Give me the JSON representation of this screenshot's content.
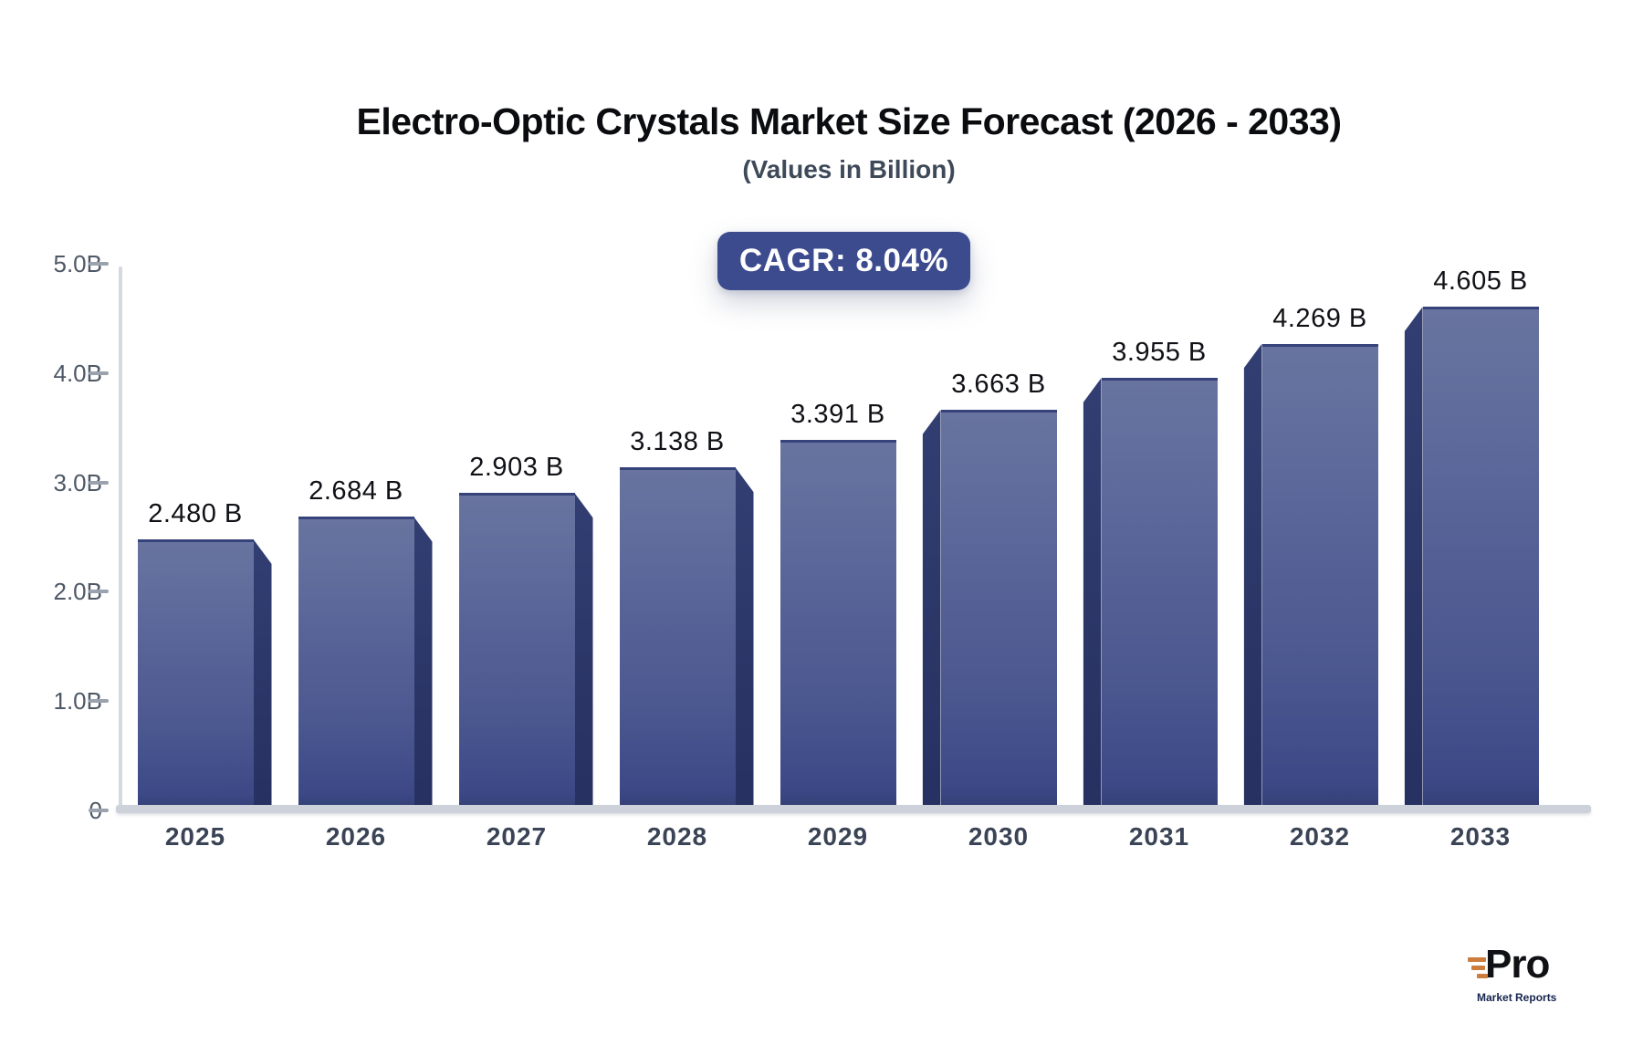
{
  "header": {
    "title": "Electro-Optic Crystals Market Size Forecast (2026 - 2033)",
    "subtitle": "(Values in Billion)",
    "cagr_badge": "CAGR: 8.04%"
  },
  "chart_data": {
    "type": "bar",
    "title": "Electro-Optic Crystals Market Size Forecast (2026 - 2033)",
    "subtitle": "(Values in Billion)",
    "cagr": "8.04%",
    "categories": [
      "2025",
      "2026",
      "2027",
      "2028",
      "2029",
      "2030",
      "2031",
      "2032",
      "2033"
    ],
    "values": [
      2.48,
      2.684,
      2.903,
      3.138,
      3.391,
      3.663,
      3.955,
      4.269,
      4.605
    ],
    "value_labels": [
      "2.480 B",
      "2.684 B",
      "2.903 B",
      "3.138 B",
      "3.391 B",
      "3.663 B",
      "3.955 B",
      "4.269 B",
      "4.605 B"
    ],
    "unit": "Billion",
    "xlabel": "",
    "ylabel": "",
    "ylim": [
      0,
      5
    ],
    "grid": false,
    "legend": false,
    "yticks": [
      {
        "label": "5.0B",
        "value": 5.0
      },
      {
        "label": "4.0B",
        "value": 4.0
      },
      {
        "label": "3.0B",
        "value": 3.0
      },
      {
        "label": "2.0B",
        "value": 2.0
      },
      {
        "label": "1.0B",
        "value": 1.0
      },
      {
        "label": "0",
        "value": 0.0
      }
    ],
    "colors": {
      "bar_face_top": "#68749f",
      "bar_face_bottom": "#3d4987",
      "bar_side": "#2b3667",
      "badge_background": "#3b4b8e",
      "badge_text": "#ffffff",
      "axis_line": "#d5d8df",
      "tick_text": "#4e5866",
      "x_label_text": "#3a4456",
      "value_label_text": "#101116"
    }
  },
  "logo": {
    "text": "Pro",
    "subtext": "Market Reports",
    "accent_color": "#cc7c3c"
  }
}
